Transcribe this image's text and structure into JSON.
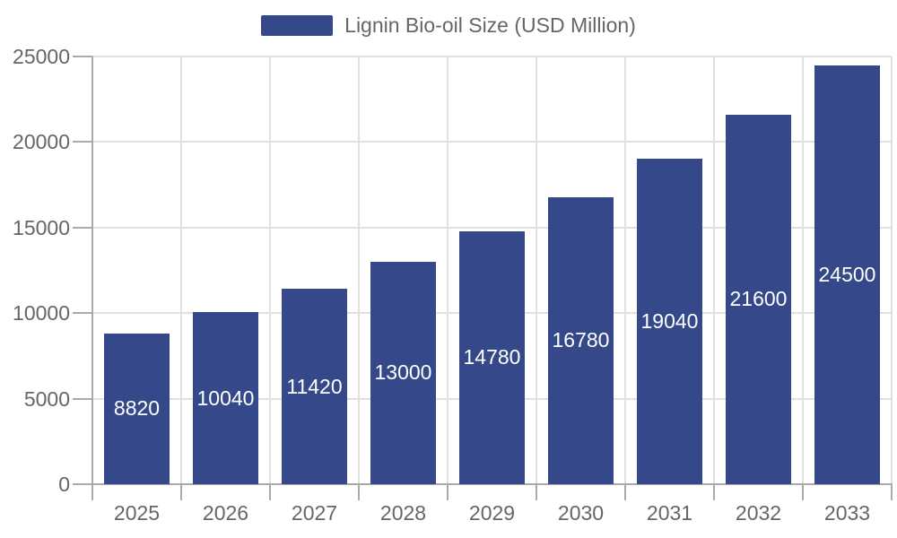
{
  "chart_data": {
    "type": "bar",
    "title": "Lignin Bio-oil Size (USD Million)",
    "legend": {
      "position": "top",
      "items": [
        "Lignin Bio-oil Size (USD Million)"
      ]
    },
    "categories": [
      "2025",
      "2026",
      "2027",
      "2028",
      "2029",
      "2030",
      "2031",
      "2032",
      "2033"
    ],
    "series": [
      {
        "name": "Lignin Bio-oil Size (USD Million)",
        "values": [
          8820,
          10040,
          11420,
          13000,
          14780,
          16780,
          19040,
          21600,
          24500
        ]
      }
    ],
    "value_labels": [
      "8820",
      "10040",
      "11420",
      "13000",
      "14780",
      "16780",
      "19040",
      "21600",
      "24500"
    ],
    "xlabel": "",
    "ylabel": "",
    "ylim": [
      0,
      25000
    ],
    "yticks": [
      0,
      5000,
      10000,
      15000,
      20000,
      25000
    ],
    "ytick_labels": [
      "0",
      "5000",
      "10000",
      "15000",
      "20000",
      "25000"
    ],
    "grid": true,
    "colors": {
      "bar": "#35498a",
      "grid": "#e0e0e0",
      "axis": "#aaaaaa",
      "tick_label": "#666666",
      "legend_text": "#666666",
      "value_label": "#ffffff",
      "background": "#ffffff"
    }
  }
}
